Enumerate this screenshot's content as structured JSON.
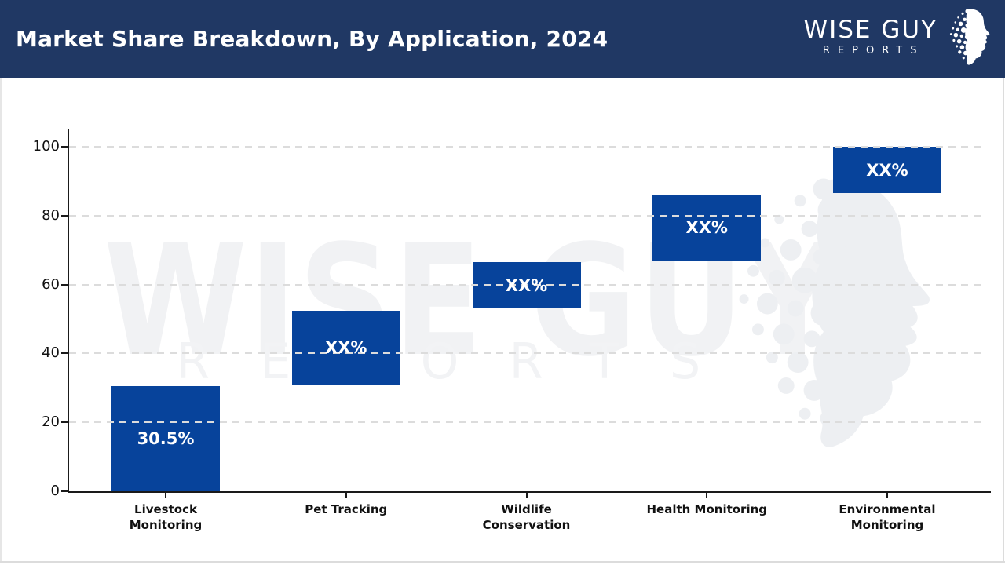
{
  "header": {
    "bg_color": "#203864",
    "logo": {
      "line1": "WISE GUY",
      "line2": "REPORTS"
    }
  },
  "watermark": {
    "line1": "WISE GUY",
    "line2": "REPORTS",
    "color": "#f1f2f4"
  },
  "chart_data": {
    "type": "bar",
    "subtype": "floating-waterfall",
    "title": "Market Share Breakdown, By Application, 2024",
    "categories": [
      "Livestock Monitoring",
      "Pet Tracking",
      "Wildlife Conservation",
      "Health Monitoring",
      "Environmental Monitoring"
    ],
    "categories_lines": [
      [
        "Livestock",
        "Monitoring"
      ],
      [
        "Pet Tracking"
      ],
      [
        "Wildlife",
        "Conservation"
      ],
      [
        "Health Monitoring"
      ],
      [
        "Environmental",
        "Monitoring"
      ]
    ],
    "segments": [
      {
        "category": "Livestock Monitoring",
        "start": 0,
        "end": 30.5,
        "label": "30.5%"
      },
      {
        "category": "Pet Tracking",
        "start": 31,
        "end": 52.5,
        "label": "XX%"
      },
      {
        "category": "Wildlife Conservation",
        "start": 53,
        "end": 66.5,
        "label": "XX%"
      },
      {
        "category": "Health Monitoring",
        "start": 67,
        "end": 86,
        "label": "XX%"
      },
      {
        "category": "Environmental Monitoring",
        "start": 86.5,
        "end": 100,
        "label": "XX%"
      }
    ],
    "y_ticks": [
      0,
      20,
      40,
      60,
      80,
      100
    ],
    "ylim": [
      0,
      100
    ],
    "xlabel": "",
    "ylabel": "",
    "legend": "none",
    "grid": "horizontal-dashed",
    "bar_color": "#07439b",
    "bar_label_color": "#ffffff",
    "grid_color": "#dcdcdc",
    "axis_color": "#1a1a1a"
  }
}
